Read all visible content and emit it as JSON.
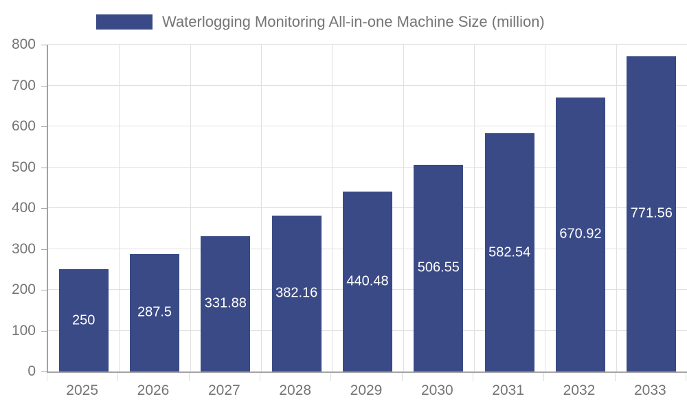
{
  "chart_data": {
    "type": "bar",
    "title": "Waterlogging Monitoring All-in-one Machine Size (million)",
    "categories": [
      "2025",
      "2026",
      "2027",
      "2028",
      "2029",
      "2030",
      "2031",
      "2032",
      "2033"
    ],
    "values": [
      250,
      287.5,
      331.88,
      382.16,
      440.48,
      506.55,
      582.54,
      670.92,
      771.56
    ],
    "value_labels": [
      "250",
      "287.5",
      "331.88",
      "382.16",
      "440.48",
      "506.55",
      "582.54",
      "670.92",
      "771.56"
    ],
    "xlabel": "",
    "ylabel": "",
    "ylim": [
      0,
      800
    ],
    "ytick_step": 100,
    "ytick_labels": [
      "0",
      "100",
      "200",
      "300",
      "400",
      "500",
      "600",
      "700",
      "800"
    ],
    "grid": true,
    "legend_position": "top",
    "bar_color": "#3A4A86",
    "data_label_color": "#FFFFFF",
    "axis_text_color": "#757575",
    "grid_color": "#E0E0E0",
    "axis_line_color": "#A3A3A3"
  }
}
